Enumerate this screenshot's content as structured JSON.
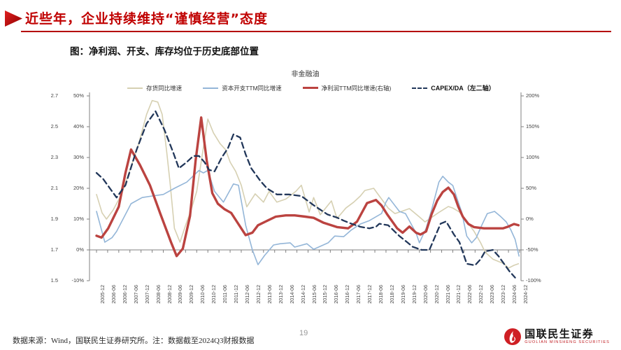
{
  "header": {
    "title": "近些年，企业持续维持“谨慎经营”态度"
  },
  "figure_caption": "图：净利润、开支、库存均位于历史底部位置",
  "footer": {
    "source_note": "数据来源：Wind，国联民生证券研究所。注：数据截至2024Q3财报数据",
    "page_number": "19",
    "logo_cn": "国联民生证券",
    "logo_en": "GUOLIAN MINSHENG SECURITIES"
  },
  "colors": {
    "title_red": "#c00000",
    "inventory": "#d6d0b2",
    "capex": "#94b6d8",
    "net_profit": "#bb4340",
    "capex_da": "#22375a",
    "axis_gray": "#808080"
  },
  "chart_data": {
    "type": "line",
    "title": "非金融油",
    "x_tick_labels": [
      "2005-12",
      "2006-06",
      "2006-12",
      "2007-06",
      "2007-12",
      "2008-06",
      "2008-12",
      "2009-06",
      "2009-12",
      "2010-06",
      "2010-12",
      "2011-06",
      "2011-12",
      "2012-06",
      "2012-12",
      "2013-06",
      "2013-12",
      "2014-06",
      "2014-12",
      "2015-06",
      "2015-12",
      "2016-06",
      "2016-12",
      "2017-06",
      "2017-12",
      "2018-06",
      "2018-12",
      "2019-06",
      "2019-12",
      "2020-06",
      "2020-12",
      "2021-06",
      "2021-12",
      "2022-06",
      "2022-12",
      "2023-06",
      "2023-12",
      "2024-06",
      "2024-12"
    ],
    "axes": {
      "left_percent": {
        "min": -10,
        "max": 50,
        "ticks": [
          "50%",
          "40%",
          "30%",
          "20%",
          "10%",
          "0%",
          "-10%"
        ]
      },
      "left_secondary": {
        "min": 1.5,
        "max": 2.7,
        "ticks": [
          "2.7",
          "2.5",
          "2.3",
          "2.1",
          "1.9",
          "1.7",
          "1.5"
        ]
      },
      "right_percent": {
        "min": -100,
        "max": 200,
        "ticks": [
          "200%",
          "150%",
          "100%",
          "50%",
          "0%",
          "-50%",
          "-100%"
        ]
      }
    },
    "legend_position": "top",
    "grid": false,
    "series": [
      {
        "name": "存货同比增速",
        "axis": "left_percent",
        "color": "#d6d0b2",
        "style": "solid",
        "width": 1.6,
        "points": [
          [
            0,
            18
          ],
          [
            0.5,
            12
          ],
          [
            0.9,
            10
          ],
          [
            1.5,
            13
          ],
          [
            2.25,
            18
          ],
          [
            3,
            26
          ],
          [
            3.75,
            34
          ],
          [
            4.5,
            44
          ],
          [
            5,
            48.5
          ],
          [
            5.5,
            48
          ],
          [
            5.9,
            44
          ],
          [
            6.3,
            32
          ],
          [
            6.6,
            22
          ],
          [
            7,
            7
          ],
          [
            7.5,
            2.5
          ],
          [
            8,
            8
          ],
          [
            8.5,
            13
          ],
          [
            9,
            19
          ],
          [
            9.5,
            31
          ],
          [
            10,
            42.5
          ],
          [
            10.5,
            38
          ],
          [
            11.1,
            34.5
          ],
          [
            11.6,
            32.5
          ],
          [
            12,
            28.5
          ],
          [
            12.5,
            25.5
          ],
          [
            13,
            21
          ],
          [
            13.5,
            14
          ],
          [
            14.25,
            18.2
          ],
          [
            15,
            15.5
          ],
          [
            15.5,
            19
          ],
          [
            16.2,
            15.5
          ],
          [
            17,
            16.5
          ],
          [
            17.9,
            19
          ],
          [
            18.4,
            21
          ],
          [
            19.1,
            12.3
          ],
          [
            19.5,
            17
          ],
          [
            20.1,
            11.4
          ],
          [
            21.1,
            15.9
          ],
          [
            21.6,
            10.2
          ],
          [
            22.4,
            13.6
          ],
          [
            23.1,
            15.5
          ],
          [
            23.7,
            17.5
          ],
          [
            24.1,
            19.3
          ],
          [
            24.9,
            20
          ],
          [
            25.4,
            17.5
          ],
          [
            26.2,
            13.6
          ],
          [
            26.8,
            11.8
          ],
          [
            27.4,
            12.5
          ],
          [
            28.1,
            13.4
          ],
          [
            29,
            10.7
          ],
          [
            29.5,
            9.1
          ],
          [
            30,
            10.3
          ],
          [
            30.8,
            12.3
          ],
          [
            31.6,
            14.1
          ],
          [
            32,
            13.6
          ],
          [
            32.6,
            12.3
          ],
          [
            33.3,
            9
          ],
          [
            33.9,
            6.1
          ],
          [
            34.5,
            2.3
          ],
          [
            34.9,
            -0.7
          ],
          [
            35.6,
            -3
          ],
          [
            36.6,
            -4.5
          ],
          [
            37,
            -5.9
          ],
          [
            37.5,
            -5
          ],
          [
            37.9,
            -4.5
          ]
        ]
      },
      {
        "name": "资本开支TTM同比增速",
        "axis": "left_percent",
        "color": "#94b6d8",
        "style": "solid",
        "width": 1.6,
        "points": [
          [
            0,
            12.5
          ],
          [
            0.75,
            2.5
          ],
          [
            1.4,
            4
          ],
          [
            1.8,
            6
          ],
          [
            3.1,
            15
          ],
          [
            4.1,
            17
          ],
          [
            5,
            17.5
          ],
          [
            6,
            18
          ],
          [
            7,
            20
          ],
          [
            8.1,
            22
          ],
          [
            9.2,
            25.8
          ],
          [
            9.6,
            25
          ],
          [
            10,
            25.8
          ],
          [
            10.6,
            19
          ],
          [
            11.4,
            15.5
          ],
          [
            12.3,
            21.4
          ],
          [
            12.75,
            21
          ],
          [
            13.4,
            8
          ],
          [
            14,
            0
          ],
          [
            14.5,
            -4.8
          ],
          [
            15.1,
            -1.8
          ],
          [
            15.9,
            1.6
          ],
          [
            16.5,
            2
          ],
          [
            17.4,
            2.3
          ],
          [
            17.8,
            0.9
          ],
          [
            18.9,
            2
          ],
          [
            19.5,
            0.2
          ],
          [
            20.8,
            2.3
          ],
          [
            21.4,
            4.5
          ],
          [
            22.2,
            4.3
          ],
          [
            22.9,
            6.5
          ],
          [
            23.7,
            8.4
          ],
          [
            24.5,
            9.5
          ],
          [
            25.6,
            11.8
          ],
          [
            26,
            15.5
          ],
          [
            26.25,
            17
          ],
          [
            27.2,
            12.5
          ],
          [
            27.75,
            11.8
          ],
          [
            28.7,
            5.5
          ],
          [
            29,
            2.3
          ],
          [
            29.6,
            7
          ],
          [
            30.1,
            13
          ],
          [
            30.75,
            22
          ],
          [
            31.1,
            23.9
          ],
          [
            31.6,
            22
          ],
          [
            32,
            20.9
          ],
          [
            32.45,
            16
          ],
          [
            32.8,
            12.3
          ],
          [
            33.25,
            4.5
          ],
          [
            33.7,
            2.3
          ],
          [
            34.1,
            3.9
          ],
          [
            34.6,
            8
          ],
          [
            35.1,
            11.8
          ],
          [
            35.75,
            12.5
          ],
          [
            36.25,
            11
          ],
          [
            36.8,
            9.1
          ],
          [
            37.2,
            6.6
          ],
          [
            37.6,
            3.4
          ],
          [
            37.95,
            -2
          ]
        ]
      },
      {
        "name": "净利润TTM同比增速(右轴)",
        "axis": "right_percent",
        "color": "#bb4340",
        "style": "solid",
        "width": 3.4,
        "points": [
          [
            0,
            -27
          ],
          [
            0.45,
            -30
          ],
          [
            1.05,
            -15
          ],
          [
            2,
            20
          ],
          [
            2.6,
            75
          ],
          [
            3.1,
            113
          ],
          [
            3.9,
            88
          ],
          [
            4.8,
            55
          ],
          [
            5.75,
            8
          ],
          [
            6.7,
            -38
          ],
          [
            7.2,
            -60
          ],
          [
            7.75,
            -48
          ],
          [
            8.4,
            5
          ],
          [
            8.9,
            95
          ],
          [
            9.4,
            165
          ],
          [
            9.9,
            95
          ],
          [
            10.4,
            42
          ],
          [
            10.9,
            25
          ],
          [
            11.5,
            16
          ],
          [
            12.1,
            10
          ],
          [
            12.6,
            -4
          ],
          [
            13.4,
            -26
          ],
          [
            14,
            -22
          ],
          [
            14.5,
            -10
          ],
          [
            15.3,
            -3
          ],
          [
            16.1,
            4
          ],
          [
            17,
            6
          ],
          [
            17.8,
            6
          ],
          [
            18.75,
            4
          ],
          [
            19.5,
            2
          ],
          [
            20.4,
            -6
          ],
          [
            21.6,
            -13
          ],
          [
            22.6,
            -15
          ],
          [
            23.4,
            -4
          ],
          [
            24.3,
            26
          ],
          [
            25.1,
            31
          ],
          [
            25.6,
            22
          ],
          [
            26.1,
            8
          ],
          [
            27,
            -15
          ],
          [
            27.5,
            -22
          ],
          [
            28.1,
            -12
          ],
          [
            28.7,
            -22
          ],
          [
            29.1,
            -25
          ],
          [
            29.6,
            -20
          ],
          [
            30.1,
            8
          ],
          [
            30.6,
            30
          ],
          [
            31.1,
            44
          ],
          [
            31.6,
            51
          ],
          [
            32.1,
            40
          ],
          [
            32.5,
            20
          ],
          [
            32.9,
            4
          ],
          [
            33.4,
            -8
          ],
          [
            33.9,
            -13
          ],
          [
            34.8,
            -15
          ],
          [
            35.75,
            -15
          ],
          [
            36.5,
            -15
          ],
          [
            37,
            -12
          ],
          [
            37.5,
            -8
          ],
          [
            37.9,
            -10
          ]
        ]
      },
      {
        "name": "CAPEX/DA（左二轴）",
        "axis": "left_secondary",
        "color": "#22375a",
        "style": "dashed",
        "width": 2.3,
        "points": [
          [
            0,
            2.2
          ],
          [
            0.6,
            2.16
          ],
          [
            1.2,
            2.1
          ],
          [
            1.8,
            2.04
          ],
          [
            2.6,
            2.12
          ],
          [
            3.6,
            2.35
          ],
          [
            4.5,
            2.52
          ],
          [
            5.3,
            2.6
          ],
          [
            6.1,
            2.48
          ],
          [
            6.9,
            2.33
          ],
          [
            7.4,
            2.23
          ],
          [
            8.1,
            2.27
          ],
          [
            8.7,
            2.31
          ],
          [
            9.2,
            2.31
          ],
          [
            9.7,
            2.27
          ],
          [
            10.1,
            2.22
          ],
          [
            10.6,
            2.21
          ],
          [
            11.25,
            2.3
          ],
          [
            11.8,
            2.36
          ],
          [
            12.3,
            2.45
          ],
          [
            12.9,
            2.43
          ],
          [
            13.4,
            2.32
          ],
          [
            13.9,
            2.23
          ],
          [
            14.7,
            2.15
          ],
          [
            15.3,
            2.1
          ],
          [
            16.2,
            2.06
          ],
          [
            17.3,
            2.06
          ],
          [
            18.4,
            2.05
          ],
          [
            19.5,
            1.99
          ],
          [
            20.75,
            1.93
          ],
          [
            21.6,
            1.91
          ],
          [
            22.2,
            1.89
          ],
          [
            22.9,
            1.87
          ],
          [
            23.7,
            1.85
          ],
          [
            24.5,
            1.84
          ],
          [
            25.1,
            1.85
          ],
          [
            25.4,
            1.87
          ],
          [
            26.2,
            1.86
          ],
          [
            27.2,
            1.79
          ],
          [
            27.9,
            1.75
          ],
          [
            28.4,
            1.72
          ],
          [
            29.2,
            1.7
          ],
          [
            29.9,
            1.7
          ],
          [
            30.9,
            1.87
          ],
          [
            31.4,
            1.885
          ],
          [
            32.1,
            1.8
          ],
          [
            32.6,
            1.75
          ],
          [
            33.25,
            1.61
          ],
          [
            34,
            1.6
          ],
          [
            34.5,
            1.64
          ],
          [
            34.9,
            1.69
          ],
          [
            35.6,
            1.7
          ],
          [
            36.1,
            1.66
          ],
          [
            36.6,
            1.61
          ],
          [
            37.1,
            1.56
          ],
          [
            37.6,
            1.52
          ]
        ]
      }
    ]
  }
}
